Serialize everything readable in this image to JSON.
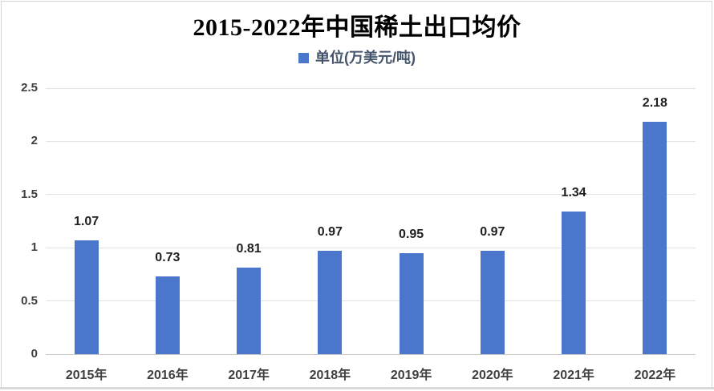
{
  "chart": {
    "title": "2015-2022年中国稀土出口均价",
    "legend_label": "单位(万美元/吨)"
  },
  "chart_data": {
    "type": "bar",
    "title": "2015-2022年中国稀土出口均价",
    "legend": [
      "单位(万美元/吨)"
    ],
    "legend_position": "top-center",
    "categories": [
      "2015年",
      "2016年",
      "2017年",
      "2018年",
      "2019年",
      "2020年",
      "2021年",
      "2022年"
    ],
    "values": [
      1.07,
      0.73,
      0.81,
      0.97,
      0.95,
      0.97,
      1.34,
      2.18
    ],
    "value_labels": [
      "1.07",
      "0.73",
      "0.81",
      "0.97",
      "0.95",
      "0.97",
      "1.34",
      "2.18"
    ],
    "xlabel": "",
    "ylabel": "",
    "ylim": [
      0,
      2.5
    ],
    "y_ticks": [
      0,
      0.5,
      1,
      1.5,
      2,
      2.5
    ],
    "y_tick_labels": [
      "0",
      "0.5",
      "1",
      "1.5",
      "2",
      "2.5"
    ],
    "grid": true,
    "colors": {
      "bar": "#4a76cc",
      "legend_marker": "#4a76cc",
      "legend_text": "#44546a",
      "gridline": "#e2e2e2",
      "axis_line": "#c9c9c9",
      "tick_label": "#404040",
      "value_label": "#1f1f1f",
      "title": "#000000"
    }
  }
}
